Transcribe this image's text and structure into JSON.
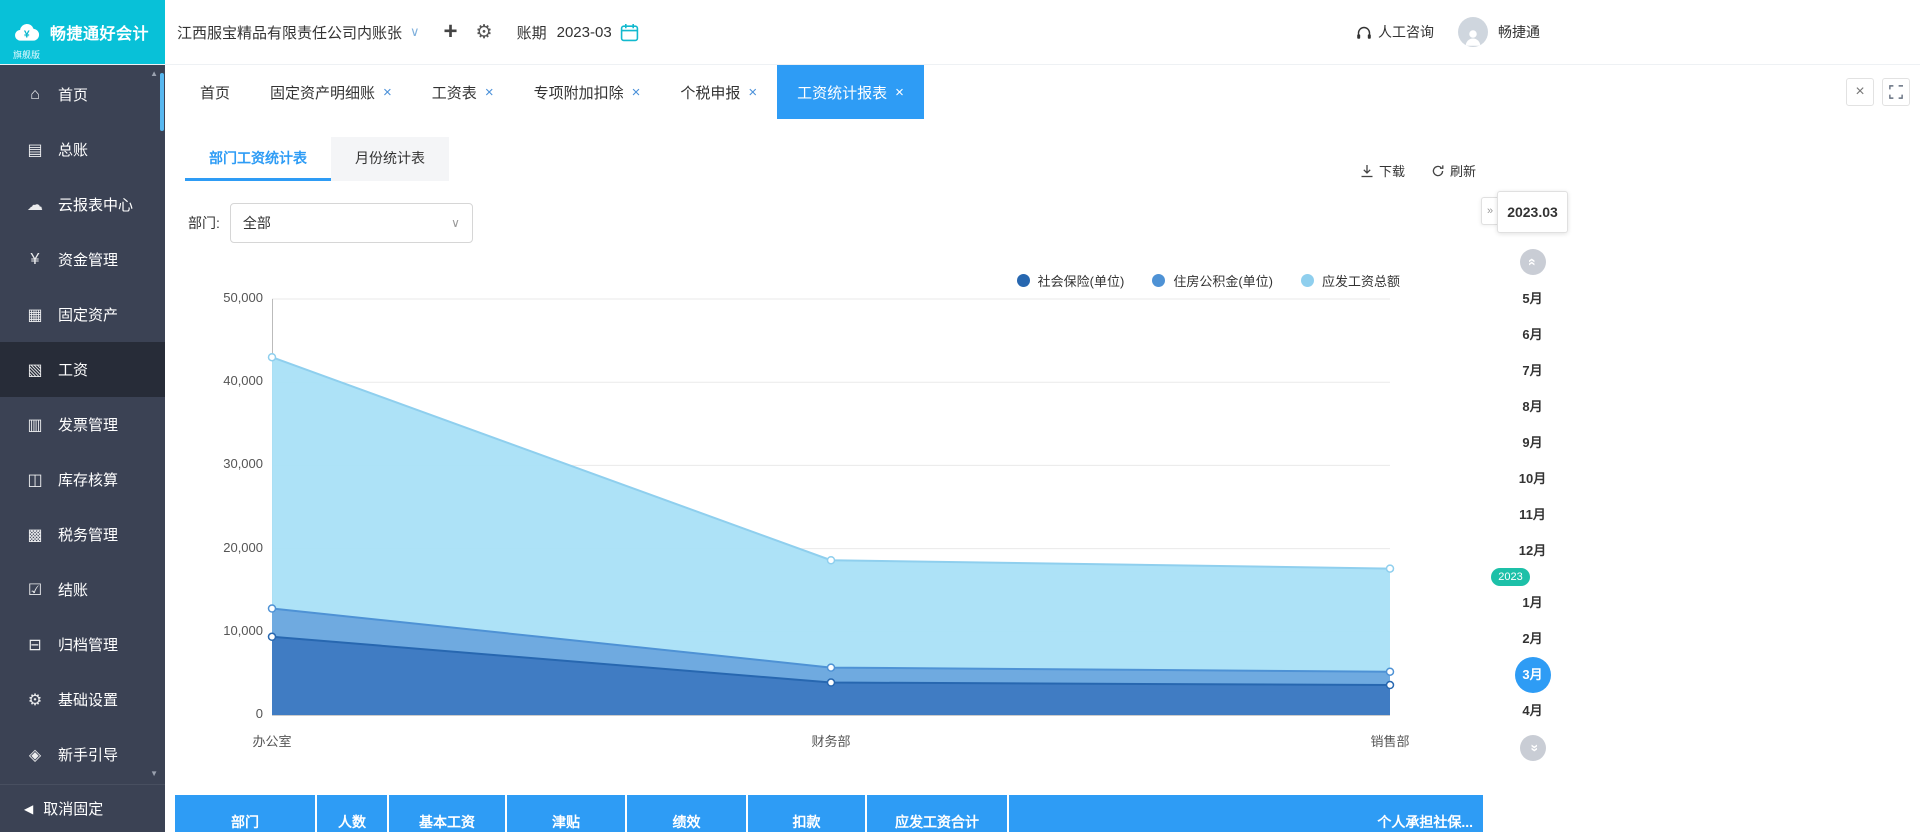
{
  "colors": {
    "accent_blue": "#2e9cf5",
    "brand_teal": "#08c1d8",
    "year_badge_teal": "#1dc0a8",
    "sidebar_bg": "#3b4254"
  },
  "topbar": {
    "product_name": "畅捷通好会计",
    "edition": "旗舰版",
    "company": "江西服宝精品有限责任公司内账张",
    "period_label": "账期",
    "period_value": "2023-03",
    "support_label": "人工咨询",
    "username": "畅捷通"
  },
  "sidebar": {
    "items": [
      {
        "label": "首页",
        "icon": "home-icon",
        "glyph": "⌂",
        "active": false
      },
      {
        "label": "总账",
        "icon": "ledger-icon",
        "glyph": "▤",
        "active": false
      },
      {
        "label": "云报表中心",
        "icon": "cloud-report-icon",
        "glyph": "☁",
        "active": false
      },
      {
        "label": "资金管理",
        "icon": "funds-icon",
        "glyph": "¥",
        "active": false
      },
      {
        "label": "固定资产",
        "icon": "fixed-assets-icon",
        "glyph": "▦",
        "active": false
      },
      {
        "label": "工资",
        "icon": "salary-icon",
        "glyph": "▧",
        "active": true
      },
      {
        "label": "发票管理",
        "icon": "invoice-icon",
        "glyph": "▥",
        "active": false
      },
      {
        "label": "库存核算",
        "icon": "inventory-icon",
        "glyph": "◫",
        "active": false
      },
      {
        "label": "税务管理",
        "icon": "tax-icon",
        "glyph": "▩",
        "active": false
      },
      {
        "label": "结账",
        "icon": "closing-icon",
        "glyph": "☑",
        "active": false
      },
      {
        "label": "归档管理",
        "icon": "archive-icon",
        "glyph": "⊟",
        "active": false
      },
      {
        "label": "基础设置",
        "icon": "settings-icon",
        "glyph": "⚙",
        "active": false
      },
      {
        "label": "新手引导",
        "icon": "guide-icon",
        "glyph": "◈",
        "active": false
      }
    ],
    "unpin_label": "取消固定",
    "unpin_glyph": "◀"
  },
  "tabbar": {
    "tabs": [
      {
        "label": "首页",
        "closable": false,
        "active": false
      },
      {
        "label": "固定资产明细账",
        "closable": true,
        "active": false
      },
      {
        "label": "工资表",
        "closable": true,
        "active": false
      },
      {
        "label": "专项附加扣除",
        "closable": true,
        "active": false
      },
      {
        "label": "个税申报",
        "closable": true,
        "active": false
      },
      {
        "label": "工资统计报表",
        "closable": true,
        "active": true
      }
    ]
  },
  "content": {
    "subtabs": [
      {
        "label": "部门工资统计表",
        "active": true
      },
      {
        "label": "月份统计表",
        "active": false
      }
    ],
    "download_label": "下载",
    "refresh_label": "刷新",
    "filter_label": "部门:",
    "filter_value": "全部",
    "table_headers": [
      "部门",
      "人数",
      "基本工资",
      "津贴",
      "绩效",
      "扣款",
      "应发工资合计",
      "个人承担社保..."
    ]
  },
  "chart_data": {
    "type": "area",
    "title": "",
    "categories": [
      "办公室",
      "财务部",
      "销售部"
    ],
    "series": [
      {
        "name": "社会保险(单位)",
        "color": "#2767b0",
        "fill": "#3d79c1",
        "values": [
          9400,
          3900,
          3600
        ]
      },
      {
        "name": "住房公积金(单位)",
        "color": "#4e92d5",
        "fill": "#6ba6de",
        "values": [
          12800,
          5700,
          5200
        ]
      },
      {
        "name": "应发工资总额",
        "color": "#8fcfee",
        "fill": "#a9e0f7",
        "values": [
          43000,
          18600,
          17600
        ]
      }
    ],
    "xlabel": "",
    "ylabel": "",
    "ylim": [
      0,
      50000
    ],
    "yticks": [
      0,
      10000,
      20000,
      30000,
      40000,
      50000
    ],
    "grid": true,
    "legend_position": "top-right"
  },
  "month_picker": {
    "current_period": "2023.03",
    "collapse_glyph": "»",
    "items": [
      {
        "type": "month",
        "label": "5月"
      },
      {
        "type": "month",
        "label": "6月"
      },
      {
        "type": "month",
        "label": "7月"
      },
      {
        "type": "month",
        "label": "8月"
      },
      {
        "type": "month",
        "label": "9月"
      },
      {
        "type": "month",
        "label": "10月"
      },
      {
        "type": "month",
        "label": "11月"
      },
      {
        "type": "month",
        "label": "12月"
      },
      {
        "type": "year",
        "label": "2023"
      },
      {
        "type": "month",
        "label": "1月"
      },
      {
        "type": "month",
        "label": "2月"
      },
      {
        "type": "month",
        "label": "3月",
        "selected": true
      },
      {
        "type": "month",
        "label": "4月"
      }
    ]
  }
}
